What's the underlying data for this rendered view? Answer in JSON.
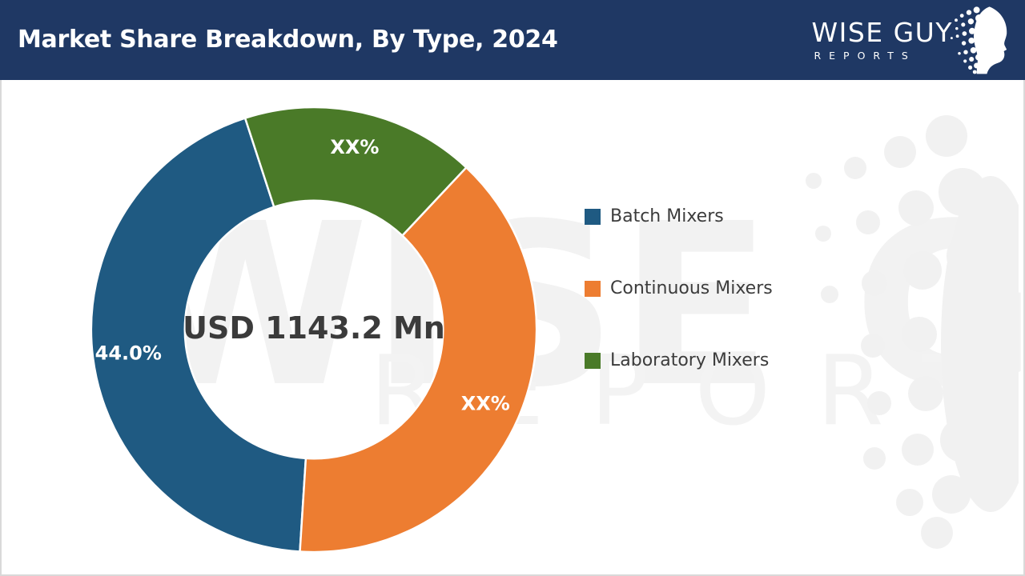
{
  "header": {
    "title": "Market Share Breakdown, By Type, 2024",
    "logo": {
      "line1": "WISE GUY",
      "line2": "REPORTS"
    }
  },
  "watermark": {
    "line1": "WISE GUY",
    "line2": "REPORTS"
  },
  "chart_data": {
    "type": "pie",
    "subtype": "donut",
    "title": "Market Share Breakdown, By Type, 2024",
    "center_label": "USD 1143.2 Mn",
    "categories": [
      "Batch Mixers",
      "Continuous Mixers",
      "Laboratory Mixers"
    ],
    "values": [
      44.0,
      39.0,
      17.0
    ],
    "value_labels": [
      "44.0%",
      "XX%",
      "XX%"
    ],
    "colors": [
      "#1f5a82",
      "#ed7d31",
      "#4a7a28"
    ],
    "start_angle": 108,
    "direction": "counterclockwise",
    "inner_radius_ratio": 0.58,
    "label_distance_ratio": 0.84,
    "legend_position": "right"
  },
  "colors": {
    "header_bg": "#1f3864",
    "text_dark": "#3c3c3c",
    "border": "#d9d9d9",
    "watermark": "#f2f2f2"
  }
}
